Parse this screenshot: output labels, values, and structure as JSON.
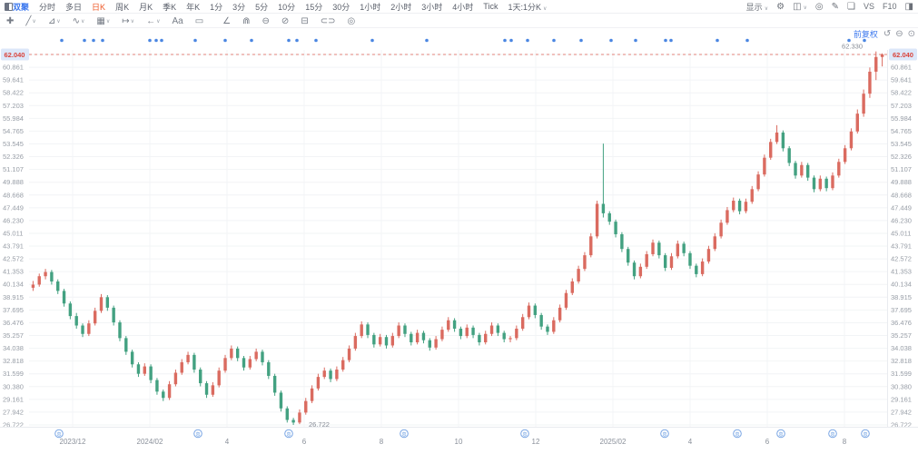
{
  "toolbar": {
    "periods": [
      {
        "label": "双聚",
        "style": "blue"
      },
      {
        "label": "分时"
      },
      {
        "label": "多日"
      },
      {
        "label": "日K",
        "style": "orange"
      },
      {
        "label": "周K"
      },
      {
        "label": "月K"
      },
      {
        "label": "季K"
      },
      {
        "label": "年K"
      },
      {
        "label": "1分"
      },
      {
        "label": "3分"
      },
      {
        "label": "5分"
      },
      {
        "label": "10分"
      },
      {
        "label": "15分"
      },
      {
        "label": "30分"
      },
      {
        "label": "1小时"
      },
      {
        "label": "2小时"
      },
      {
        "label": "3小时"
      },
      {
        "label": "4小时"
      },
      {
        "label": "Tick"
      },
      {
        "label": "1天:1分K",
        "caret": true
      }
    ],
    "right": [
      {
        "label": "显示",
        "caret": true,
        "name": "display-menu"
      },
      {
        "glyph": "⚙",
        "name": "settings-icon"
      },
      {
        "glyph": "◫",
        "caret": true,
        "name": "chart-layout-icon"
      },
      {
        "glyph": "◎",
        "name": "screenshot-icon"
      },
      {
        "glyph": "✎",
        "name": "annotate-icon"
      },
      {
        "glyph": "❏",
        "name": "fullscreen-icon"
      },
      {
        "label": "VS",
        "name": "compare-button"
      },
      {
        "label": "F10",
        "name": "f10-button"
      },
      {
        "glyph": "◨",
        "name": "side-panel-icon"
      }
    ],
    "draw_tools": [
      {
        "glyph": "✚",
        "name": "cross-cursor-tool"
      },
      {
        "glyph": "╱",
        "caret": true,
        "name": "trendline-tool"
      },
      {
        "glyph": "⊿",
        "caret": true,
        "name": "shape-tool"
      },
      {
        "glyph": "∿",
        "caret": true,
        "name": "wave-tool"
      },
      {
        "glyph": "▦",
        "caret": true,
        "name": "gann-tool"
      },
      {
        "glyph": "↦",
        "caret": true,
        "name": "measure-tool"
      },
      {
        "glyph": "←",
        "caret": true,
        "name": "arrow-tool"
      },
      {
        "glyph": "Aa",
        "name": "text-tool"
      },
      {
        "glyph": "▭",
        "name": "comment-tool"
      },
      {
        "glyph": "∠",
        "name": "angle-tool",
        "gap": true
      },
      {
        "glyph": "⋒",
        "name": "magnet-tool"
      },
      {
        "glyph": "⊖",
        "name": "hide-drawings-tool"
      },
      {
        "glyph": "⊘",
        "name": "lock-drawings-tool"
      },
      {
        "glyph": "⊟",
        "name": "delete-drawings-tool"
      },
      {
        "glyph": "⊂⊃",
        "name": "link-tool"
      },
      {
        "glyph": "◎",
        "name": "visibility-tool"
      }
    ]
  },
  "chart": {
    "adjust_label": "前复权",
    "corner_icons": [
      {
        "glyph": "↺",
        "name": "restore-icon"
      },
      {
        "glyph": "⊖",
        "name": "zoom-out-icon"
      },
      {
        "glyph": "⊙",
        "name": "locate-icon"
      }
    ],
    "price_badge": "62.040",
    "announcement_dots_x": [
      68,
      93,
      103,
      113,
      165,
      172,
      178,
      215,
      248,
      277,
      318,
      327,
      348,
      410,
      470,
      556,
      563,
      581,
      610,
      640,
      673,
      700,
      733,
      739,
      790,
      823,
      935,
      952
    ],
    "bottom_markers": {
      "glyph": "息",
      "x": [
        65,
        218,
        318,
        445,
        578,
        732,
        812,
        860,
        917,
        953
      ]
    },
    "colors": {
      "up": "#da6b60",
      "down": "#43a181",
      "dashed_line": "#e2837b",
      "badge_bg": "#dce7f9",
      "badge_text": "#d9433b",
      "dot_blue": "#4a86e2",
      "axis_text": "#979da6",
      "accent_blue": "#3c78ee"
    }
  },
  "chart_data": {
    "type": "candlestick",
    "title": "",
    "ylim": [
      26.722,
      62.33
    ],
    "current_price": 62.04,
    "high_annotation": {
      "text": "62.330",
      "value": 62.33
    },
    "low_annotation": {
      "text": "26.722",
      "value": 26.722
    },
    "y_ticks": [
      "62.040",
      "60.861",
      "59.641",
      "58.422",
      "57.203",
      "55.984",
      "54.765",
      "53.545",
      "52.326",
      "51.107",
      "49.888",
      "48.668",
      "47.449",
      "46.230",
      "45.011",
      "43.791",
      "42.572",
      "41.353",
      "40.134",
      "38.915",
      "37.695",
      "36.476",
      "35.257",
      "34.038",
      "32.818",
      "31.599",
      "30.380",
      "29.161",
      "27.942",
      "26.722"
    ],
    "x_axis_labels": [
      {
        "text": "2023/12",
        "x": 80
      },
      {
        "text": "2024/02",
        "x": 165
      },
      {
        "text": "4",
        "x": 250
      },
      {
        "text": "6",
        "x": 335
      },
      {
        "text": "8",
        "x": 420
      },
      {
        "text": "10",
        "x": 505
      },
      {
        "text": "12",
        "x": 590
      },
      {
        "text": "2025/02",
        "x": 675
      },
      {
        "text": "4",
        "x": 760
      },
      {
        "text": "6",
        "x": 845
      },
      {
        "text": "8",
        "x": 930
      }
    ],
    "candles": [
      [
        39.8,
        40.45,
        39.5,
        40.1
      ],
      [
        40.1,
        41.15,
        39.9,
        40.9
      ],
      [
        40.9,
        41.6,
        40.6,
        41.3
      ],
      [
        41.3,
        41.5,
        40.1,
        40.4
      ],
      [
        40.4,
        40.6,
        39.2,
        39.5
      ],
      [
        39.5,
        39.7,
        38.0,
        38.3
      ],
      [
        38.3,
        38.5,
        36.8,
        37.1
      ],
      [
        37.1,
        37.4,
        35.9,
        36.2
      ],
      [
        36.2,
        36.4,
        35.1,
        35.4
      ],
      [
        35.4,
        36.7,
        35.2,
        36.4
      ],
      [
        36.4,
        37.9,
        36.2,
        37.6
      ],
      [
        37.6,
        39.2,
        37.4,
        38.9
      ],
      [
        38.9,
        39.1,
        37.6,
        37.9
      ],
      [
        37.9,
        38.1,
        36.2,
        36.5
      ],
      [
        36.5,
        36.7,
        34.7,
        35.0
      ],
      [
        35.0,
        35.2,
        33.4,
        33.7
      ],
      [
        33.7,
        33.9,
        32.2,
        32.5
      ],
      [
        32.5,
        32.7,
        31.3,
        31.6
      ],
      [
        31.6,
        32.6,
        31.4,
        32.3
      ],
      [
        32.3,
        32.5,
        30.7,
        31.0
      ],
      [
        31.0,
        31.2,
        29.6,
        29.9
      ],
      [
        29.9,
        30.1,
        29.0,
        29.3
      ],
      [
        29.3,
        30.9,
        29.1,
        30.6
      ],
      [
        30.6,
        32.0,
        30.4,
        31.7
      ],
      [
        31.7,
        33.0,
        31.5,
        32.7
      ],
      [
        32.7,
        33.7,
        32.5,
        33.4
      ],
      [
        33.4,
        33.6,
        31.7,
        32.0
      ],
      [
        32.0,
        32.2,
        30.4,
        30.7
      ],
      [
        30.7,
        30.9,
        29.3,
        29.6
      ],
      [
        29.6,
        30.8,
        29.4,
        30.5
      ],
      [
        30.5,
        32.2,
        30.3,
        31.9
      ],
      [
        31.9,
        33.4,
        31.7,
        33.1
      ],
      [
        33.1,
        34.3,
        32.9,
        34.0
      ],
      [
        34.0,
        34.2,
        32.8,
        33.1
      ],
      [
        33.1,
        33.3,
        31.9,
        32.2
      ],
      [
        32.2,
        33.3,
        32.0,
        33.0
      ],
      [
        33.0,
        34.0,
        32.8,
        33.7
      ],
      [
        33.7,
        33.9,
        32.4,
        32.7
      ],
      [
        32.7,
        32.9,
        31.1,
        31.4
      ],
      [
        31.4,
        31.6,
        29.5,
        29.8
      ],
      [
        29.8,
        30.0,
        28.0,
        28.3
      ],
      [
        28.3,
        28.5,
        26.95,
        27.2
      ],
      [
        27.2,
        27.4,
        26.722,
        26.95
      ],
      [
        26.95,
        28.2,
        26.8,
        27.9
      ],
      [
        27.9,
        29.3,
        27.7,
        29.0
      ],
      [
        29.0,
        30.5,
        28.8,
        30.2
      ],
      [
        30.2,
        31.6,
        30.0,
        31.3
      ],
      [
        31.3,
        32.2,
        31.1,
        31.9
      ],
      [
        31.9,
        32.1,
        30.8,
        31.1
      ],
      [
        31.1,
        32.3,
        30.9,
        32.0
      ],
      [
        32.0,
        33.2,
        31.8,
        32.9
      ],
      [
        32.9,
        34.3,
        32.7,
        34.0
      ],
      [
        34.0,
        35.5,
        33.8,
        35.2
      ],
      [
        35.2,
        36.6,
        35.0,
        36.3
      ],
      [
        36.3,
        36.5,
        35.0,
        35.3
      ],
      [
        35.3,
        35.5,
        34.1,
        34.4
      ],
      [
        34.4,
        35.4,
        34.2,
        35.1
      ],
      [
        35.1,
        35.3,
        34.0,
        34.3
      ],
      [
        34.3,
        35.5,
        34.1,
        35.2
      ],
      [
        35.2,
        36.5,
        35.0,
        36.2
      ],
      [
        36.2,
        36.4,
        35.1,
        35.4
      ],
      [
        35.4,
        35.6,
        34.3,
        34.6
      ],
      [
        34.6,
        35.8,
        34.4,
        35.5
      ],
      [
        35.5,
        35.7,
        34.5,
        34.8
      ],
      [
        34.8,
        35.0,
        33.8,
        34.1
      ],
      [
        34.1,
        35.2,
        33.9,
        34.9
      ],
      [
        34.9,
        36.1,
        34.7,
        35.8
      ],
      [
        35.8,
        37.0,
        35.6,
        36.7
      ],
      [
        36.7,
        36.9,
        35.6,
        35.9
      ],
      [
        35.9,
        36.1,
        34.9,
        35.2
      ],
      [
        35.2,
        36.3,
        35.0,
        36.0
      ],
      [
        36.0,
        36.2,
        35.0,
        35.3
      ],
      [
        35.3,
        35.5,
        34.3,
        34.6
      ],
      [
        34.6,
        35.7,
        34.4,
        35.4
      ],
      [
        35.4,
        36.5,
        35.2,
        36.2
      ],
      [
        36.2,
        36.4,
        35.2,
        35.5
      ],
      [
        35.5,
        35.7,
        34.6,
        34.9
      ],
      [
        34.9,
        35.2,
        34.6,
        35.0
      ],
      [
        35.0,
        36.2,
        34.8,
        35.9
      ],
      [
        35.9,
        37.3,
        35.7,
        37.0
      ],
      [
        37.0,
        38.4,
        36.8,
        38.1
      ],
      [
        38.1,
        38.3,
        36.9,
        37.2
      ],
      [
        37.2,
        37.4,
        35.8,
        36.1
      ],
      [
        36.1,
        36.3,
        35.3,
        35.6
      ],
      [
        35.6,
        37.0,
        35.4,
        36.7
      ],
      [
        36.7,
        38.2,
        36.5,
        37.9
      ],
      [
        37.9,
        39.6,
        37.7,
        39.3
      ],
      [
        39.3,
        40.7,
        39.1,
        40.4
      ],
      [
        40.4,
        41.9,
        40.2,
        41.6
      ],
      [
        41.6,
        43.2,
        41.4,
        42.9
      ],
      [
        42.9,
        45.0,
        42.7,
        44.7
      ],
      [
        44.7,
        48.1,
        44.5,
        47.8
      ],
      [
        47.8,
        53.545,
        46.5,
        46.9
      ],
      [
        46.9,
        47.1,
        45.8,
        46.1
      ],
      [
        46.1,
        46.3,
        44.6,
        44.9
      ],
      [
        44.9,
        45.1,
        43.2,
        43.5
      ],
      [
        43.5,
        43.7,
        41.9,
        42.2
      ],
      [
        42.2,
        42.4,
        40.6,
        40.9
      ],
      [
        40.9,
        42.1,
        40.7,
        41.8
      ],
      [
        41.8,
        43.3,
        41.6,
        43.0
      ],
      [
        43.0,
        44.4,
        42.8,
        44.1
      ],
      [
        44.1,
        44.3,
        42.6,
        42.9
      ],
      [
        42.9,
        43.1,
        41.4,
        41.7
      ],
      [
        41.7,
        43.1,
        41.5,
        42.8
      ],
      [
        42.8,
        44.3,
        42.6,
        44.0
      ],
      [
        44.0,
        44.2,
        42.8,
        43.1
      ],
      [
        43.1,
        43.3,
        41.6,
        41.9
      ],
      [
        41.9,
        42.1,
        40.8,
        41.1
      ],
      [
        41.1,
        42.6,
        40.9,
        42.3
      ],
      [
        42.3,
        43.8,
        42.1,
        43.5
      ],
      [
        43.5,
        45.0,
        43.3,
        44.7
      ],
      [
        44.7,
        46.3,
        44.5,
        46.0
      ],
      [
        46.0,
        47.5,
        45.8,
        47.2
      ],
      [
        47.2,
        48.4,
        47.0,
        48.1
      ],
      [
        48.1,
        48.3,
        46.8,
        47.1
      ],
      [
        47.1,
        48.3,
        46.9,
        48.0
      ],
      [
        48.0,
        49.5,
        47.8,
        49.2
      ],
      [
        49.2,
        50.9,
        49.0,
        50.6
      ],
      [
        50.6,
        52.5,
        50.4,
        52.2
      ],
      [
        52.2,
        54.0,
        52.0,
        53.7
      ],
      [
        53.7,
        55.3,
        53.5,
        54.6
      ],
      [
        54.6,
        54.8,
        52.8,
        53.1
      ],
      [
        53.1,
        53.3,
        51.4,
        51.7
      ],
      [
        51.7,
        51.9,
        50.2,
        50.5
      ],
      [
        50.5,
        51.8,
        50.3,
        51.5
      ],
      [
        51.5,
        51.7,
        50.0,
        50.3
      ],
      [
        50.3,
        50.5,
        48.9,
        49.2
      ],
      [
        49.2,
        50.5,
        49.0,
        50.2
      ],
      [
        50.2,
        50.4,
        49.0,
        49.3
      ],
      [
        49.3,
        50.8,
        49.1,
        50.5
      ],
      [
        50.5,
        52.1,
        50.3,
        51.8
      ],
      [
        51.8,
        53.4,
        51.6,
        53.1
      ],
      [
        53.1,
        55.0,
        52.9,
        54.7
      ],
      [
        54.7,
        56.8,
        54.5,
        56.4
      ],
      [
        56.4,
        58.7,
        56.1,
        58.3
      ],
      [
        58.3,
        60.8,
        57.9,
        60.4
      ],
      [
        60.4,
        62.33,
        59.6,
        61.8
      ],
      [
        61.8,
        62.15,
        60.9,
        62.04
      ]
    ]
  }
}
